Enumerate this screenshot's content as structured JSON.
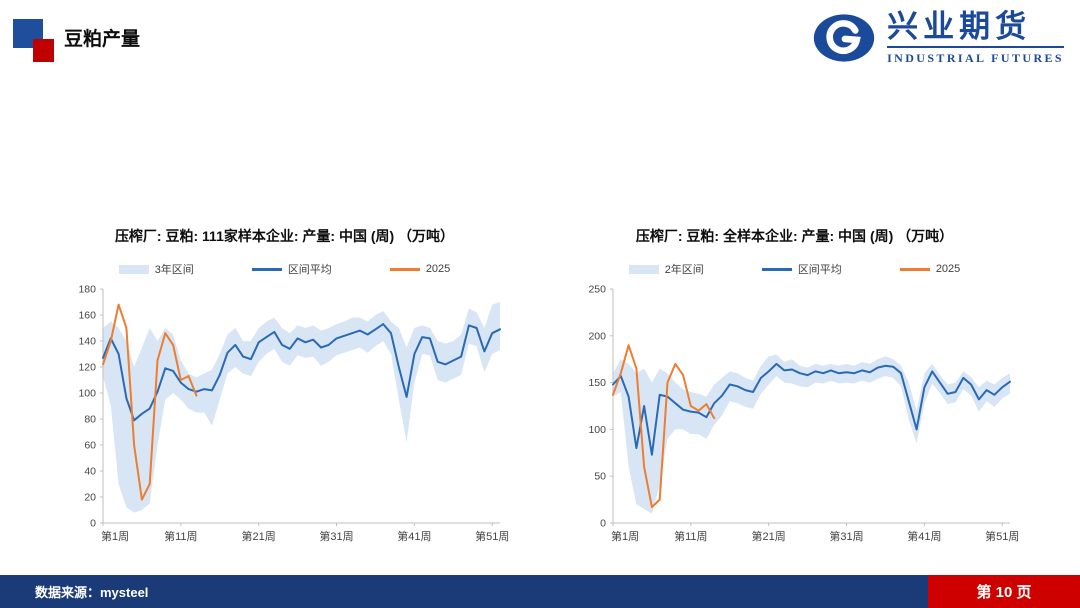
{
  "header": {
    "title": "豆粕产量",
    "logo": {
      "cn": "兴业期货",
      "en": "INDUSTRIAL FUTURES"
    }
  },
  "footer": {
    "source": "数据来源：mysteel",
    "page": "第 10 页"
  },
  "colors": {
    "band": "#D8E5F4",
    "mean_line": "#2A6AB4",
    "line_2025": "#ED7D31",
    "axis": "#BFBFBF",
    "tick_text": "#444444",
    "footer_bg": "#1B3A78",
    "footer_accent": "#CE0000",
    "logo_blue": "#1B4A9B",
    "mark_blue": "#1F4E9C",
    "mark_red": "#C00000"
  },
  "chart_data": [
    {
      "type": "line",
      "title": "压榨厂: 豆粕: 111家样本企业: 产量: 中国 (周) （万吨）",
      "ylim": [
        0,
        180
      ],
      "y_tick_step": 20,
      "weeks": 52,
      "x_tick_weeks": [
        1,
        11,
        21,
        31,
        41,
        51
      ],
      "x_tick_labels": [
        "第1周",
        "第11周",
        "第21周",
        "第31周",
        "第41周",
        "第51周"
      ],
      "grid": false,
      "legend_position": "top",
      "series": [
        {
          "name": "3年区间",
          "type": "band",
          "color": "#D8E5F4",
          "low": [
            113,
            90,
            30,
            12,
            8,
            10,
            15,
            60,
            95,
            100,
            95,
            88,
            85,
            85,
            75,
            95,
            115,
            120,
            115,
            113,
            124,
            130,
            134,
            124,
            121,
            129,
            127,
            128,
            121,
            124,
            129,
            131,
            133,
            135,
            131,
            136,
            140,
            130,
            95,
            62,
            108,
            130,
            129,
            110,
            108,
            111,
            114,
            138,
            136,
            116,
            130,
            133
          ],
          "high": [
            150,
            155,
            150,
            140,
            120,
            135,
            150,
            140,
            150,
            145,
            125,
            115,
            112,
            115,
            118,
            130,
            145,
            150,
            140,
            140,
            150,
            155,
            158,
            150,
            146,
            152,
            150,
            152,
            148,
            150,
            153,
            155,
            158,
            158,
            155,
            160,
            163,
            155,
            150,
            135,
            150,
            152,
            150,
            140,
            138,
            140,
            145,
            165,
            162,
            150,
            168,
            170
          ]
        },
        {
          "name": "区间平均",
          "type": "line",
          "color": "#2A6AB4",
          "start_week": 1,
          "values": [
            127,
            142,
            130,
            96,
            79,
            84,
            88,
            101,
            119,
            117,
            108,
            103,
            101,
            103,
            102,
            114,
            131,
            137,
            128,
            126,
            139,
            143,
            147,
            137,
            134,
            142,
            139,
            141,
            135,
            137,
            142,
            144,
            146,
            148,
            145,
            149,
            153,
            146,
            120,
            97,
            130,
            143,
            142,
            124,
            122,
            125,
            128,
            152,
            150,
            132,
            146,
            149
          ]
        },
        {
          "name": "2025",
          "type": "line",
          "color": "#ED7D31",
          "start_week": 1,
          "values": [
            122,
            140,
            168,
            150,
            60,
            18,
            30,
            125,
            146,
            137,
            110,
            113,
            98
          ]
        }
      ]
    },
    {
      "type": "line",
      "title": "压榨厂: 豆粕: 全样本企业: 产量: 中国 (周) （万吨）",
      "ylim": [
        0,
        250
      ],
      "y_tick_step": 50,
      "weeks": 52,
      "x_tick_weeks": [
        1,
        11,
        21,
        31,
        41,
        51
      ],
      "x_tick_labels": [
        "第1周",
        "第11周",
        "第21周",
        "第31周",
        "第41周",
        "第51周"
      ],
      "grid": false,
      "legend_position": "top",
      "series": [
        {
          "name": "2年区间",
          "type": "band",
          "color": "#D8E5F4",
          "low": [
            135,
            140,
            60,
            20,
            15,
            10,
            40,
            90,
            100,
            100,
            95,
            95,
            90,
            105,
            115,
            130,
            128,
            124,
            122,
            138,
            148,
            157,
            150,
            149,
            146,
            145,
            150,
            149,
            152,
            149,
            150,
            149,
            152,
            150,
            154,
            157,
            155,
            146,
            110,
            85,
            128,
            149,
            139,
            127,
            129,
            143,
            136,
            119,
            130,
            124,
            133,
            138
          ],
          "high": [
            160,
            175,
            170,
            160,
            165,
            150,
            165,
            160,
            150,
            143,
            140,
            138,
            135,
            148,
            155,
            162,
            160,
            155,
            152,
            168,
            178,
            180,
            172,
            175,
            168,
            166,
            170,
            168,
            170,
            168,
            170,
            168,
            172,
            170,
            175,
            178,
            175,
            168,
            150,
            120,
            160,
            170,
            158,
            148,
            150,
            162,
            156,
            145,
            152,
            148,
            155,
            160
          ]
        },
        {
          "name": "区间平均",
          "type": "line",
          "color": "#2A6AB4",
          "start_week": 1,
          "values": [
            148,
            157,
            135,
            80,
            125,
            73,
            137,
            135,
            128,
            121,
            119,
            118,
            113,
            128,
            136,
            148,
            146,
            142,
            140,
            155,
            162,
            170,
            163,
            164,
            160,
            158,
            162,
            160,
            163,
            160,
            161,
            160,
            163,
            161,
            166,
            168,
            167,
            160,
            130,
            100,
            145,
            162,
            150,
            138,
            140,
            155,
            148,
            132,
            142,
            137,
            145,
            151
          ]
        },
        {
          "name": "2025",
          "type": "line",
          "color": "#ED7D31",
          "start_week": 1,
          "values": [
            137,
            160,
            190,
            165,
            60,
            17,
            25,
            150,
            170,
            158,
            125,
            120,
            127,
            112
          ]
        }
      ]
    }
  ]
}
